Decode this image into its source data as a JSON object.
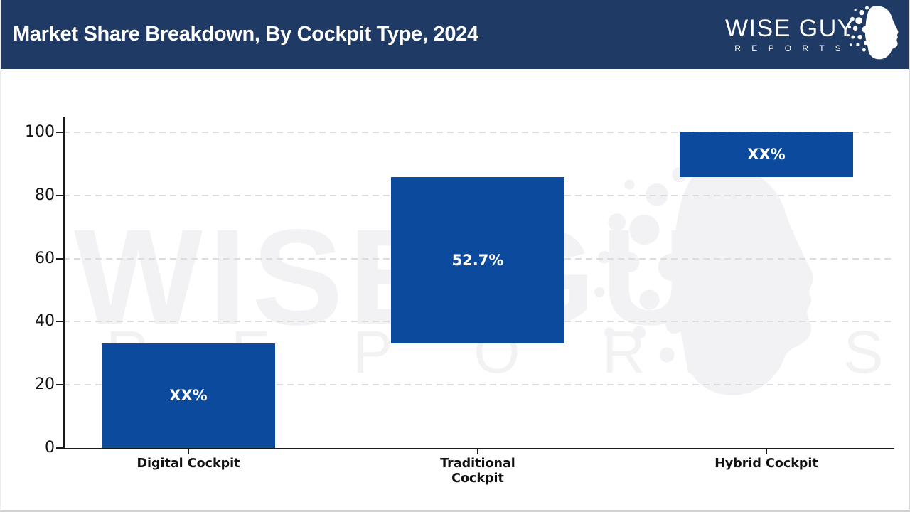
{
  "header": {
    "title": "Market Share Breakdown, By Cockpit Type, 2024",
    "logo": {
      "line1": "WISE GUY",
      "line2": "R E P O R T S"
    }
  },
  "watermark": {
    "line1": "WISE GUY",
    "line2": "R E P O R T S"
  },
  "chart_data": {
    "type": "bar",
    "subtype": "waterfall-stacked",
    "title": "Market Share Breakdown, By Cockpit Type, 2024",
    "categories": [
      "Digital Cockpit",
      "Traditional Cockpit",
      "Hybrid Cockpit"
    ],
    "category_lines": [
      [
        "Digital Cockpit"
      ],
      [
        "Traditional",
        "Cockpit"
      ],
      [
        "Hybrid Cockpit"
      ]
    ],
    "bars": [
      {
        "category": "Digital Cockpit",
        "start": 0,
        "end": 33.2,
        "height": 33.2,
        "label": "XX%"
      },
      {
        "category": "Traditional Cockpit",
        "start": 33.2,
        "end": 85.9,
        "height": 52.7,
        "label": "52.7%"
      },
      {
        "category": "Hybrid Cockpit",
        "start": 85.9,
        "end": 100,
        "height": 14.1,
        "label": "XX%"
      }
    ],
    "ylim": [
      0,
      100
    ],
    "yticks": [
      0,
      20,
      40,
      60,
      80,
      100
    ],
    "grid": "dashed-horizontal",
    "legend": "none",
    "xlabel": "",
    "ylabel": ""
  },
  "colors": {
    "header_bg": "#203a66",
    "bar": "#0c4a9e",
    "bar_label": "#ffffff",
    "gridline": "#dcdcdc",
    "axis": "#1a1a1a",
    "watermark": "#f2f2f4",
    "page_border": "#d8d8d8"
  }
}
